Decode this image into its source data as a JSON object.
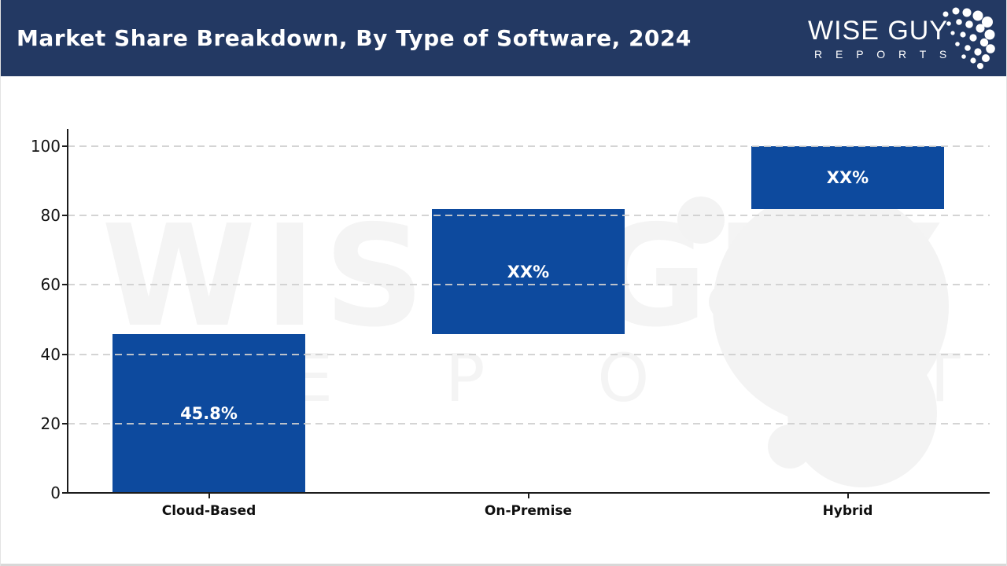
{
  "header": {
    "title": "Market Share Breakdown, By Type of Software, 2024",
    "logo": {
      "line1": "WISE GUY",
      "line2": "R E P O R T S"
    }
  },
  "watermark": {
    "line1": "WISE GUY",
    "line2": "R E P O R T S"
  },
  "chart_data": {
    "type": "bar",
    "variant": "floating-segment-waterfall",
    "title": "Market Share Breakdown, By Type of Software, 2024",
    "categories": [
      "Cloud-Based",
      "On-Premise",
      "Hybrid"
    ],
    "series": [
      {
        "name": "Market share (%)",
        "segments": [
          {
            "category": "Cloud-Based",
            "start": 0,
            "end": 45.8,
            "label": "45.8%"
          },
          {
            "category": "On-Premise",
            "start": 45.8,
            "end": 81.8,
            "label": "XX%"
          },
          {
            "category": "Hybrid",
            "start": 81.8,
            "end": 100,
            "label": "XX%"
          }
        ]
      }
    ],
    "xlabel": "",
    "ylabel": "",
    "ylim": [
      0,
      105
    ],
    "yticks": [
      0,
      20,
      40,
      60,
      80,
      100
    ],
    "grid": "horizontal-dashed",
    "legend": "none",
    "bar_color": "#0D4A9E",
    "bar_label_color": "#FFFFFF"
  },
  "colors": {
    "header_bg": "#233963",
    "title_text": "#FFFFFF",
    "bar": "#0D4A9E",
    "gridline": "#CFCFCF",
    "axis": "#1C1C1C",
    "watermark": "#F4F4F4",
    "bottom_strip": "#D8D8D8"
  }
}
